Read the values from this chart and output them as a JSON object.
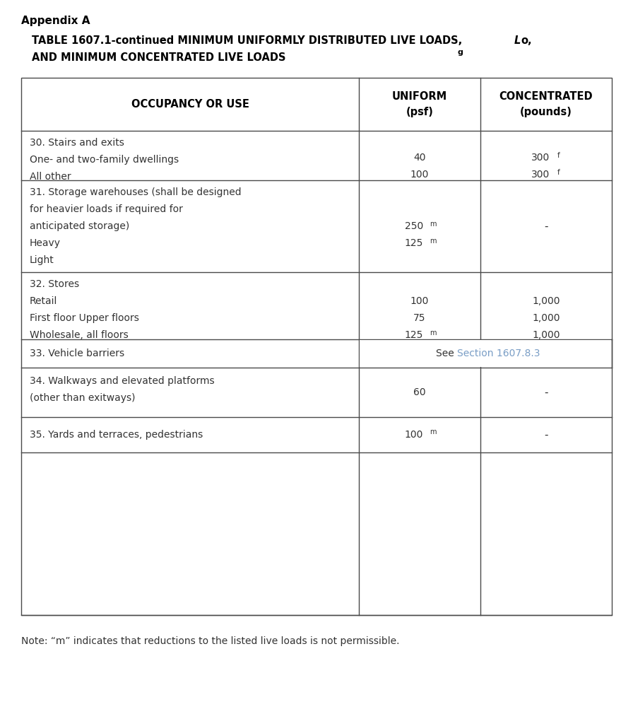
{
  "appendix_label": "Appendix A",
  "title_line1": "TABLE 1607.1-continued MINIMUM UNIFORMLY DISTRIBUTED LIVE LOADS, ",
  "title_lo_italic": "L",
  "title_lo_rest": "o,",
  "title_line2": "AND MINIMUM CONCENTRATED LIVE LOADS",
  "title_superscript_g": "g",
  "col1_header": "OCCUPANCY OR USE",
  "col2_header": "UNIFORM\n(psf)",
  "col3_header": "CONCENTRATED\n(pounds)",
  "note": "Note: “m” indicates that reductions to the listed live loads is not permissible.",
  "background_color": "#ffffff",
  "text_color": "#333333",
  "border_color": "#4a4a4a",
  "section_ref_color": "#7a9ec6",
  "row30_occ": [
    "30. Stairs and exits",
    "One- and two-family dwellings",
    "All other"
  ],
  "row30_uniform": [
    "40",
    "100"
  ],
  "row31_occ": [
    "31. Storage warehouses (shall be designed",
    "for heavier loads if required for",
    "anticipated storage)",
    "Heavy",
    "Light"
  ],
  "row31_uniform": [
    "250",
    "125"
  ],
  "row32_occ": [
    "32. Stores",
    "Retail",
    "First floor Upper floors",
    "Wholesale, all floors"
  ],
  "row32_uniform": [
    "100",
    "75",
    "125"
  ],
  "row32_conc": [
    "1,000",
    "1,000",
    "1,000"
  ],
  "row33_occ": "33. Vehicle barriers",
  "row33_span": "See ",
  "row33_ref": "Section 1607.8.3",
  "row34_occ": [
    "34. Walkways and elevated platforms",
    "(other than exitways)"
  ],
  "row34_uniform": "60",
  "row35_occ": "35. Yards and terraces, pedestrians",
  "row35_uniform": "100"
}
